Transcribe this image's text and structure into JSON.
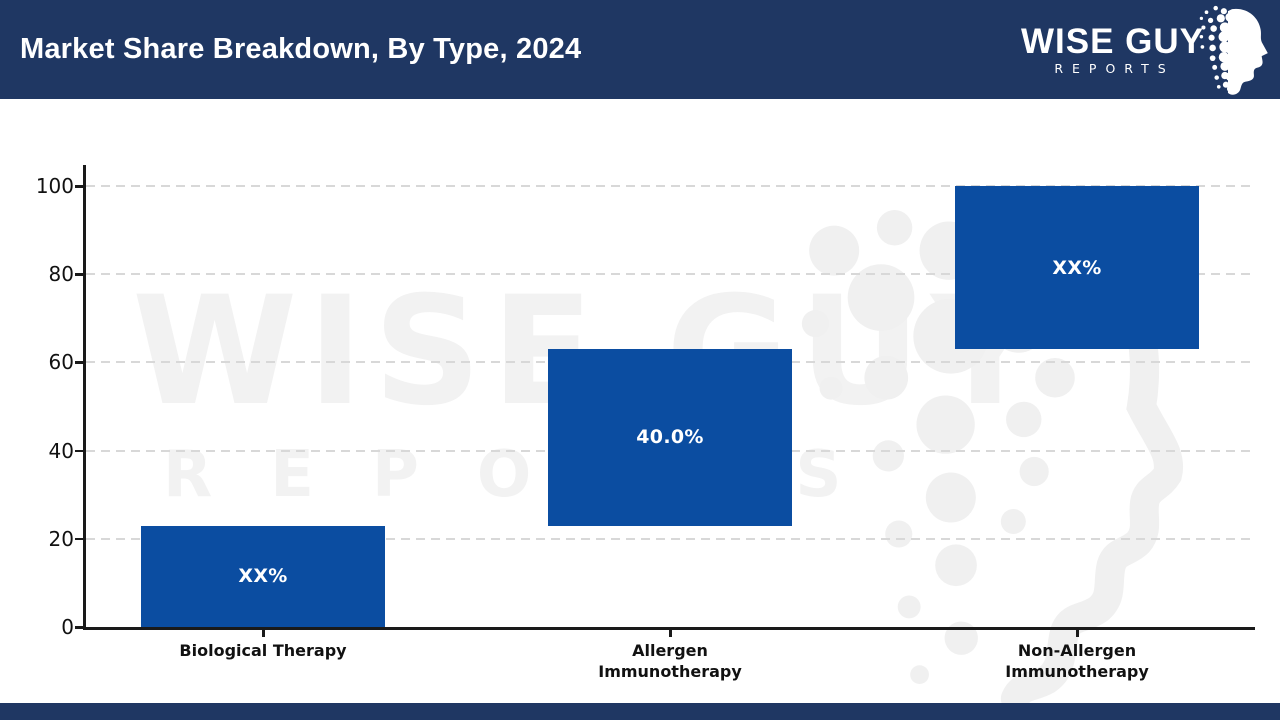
{
  "header": {
    "title": "Market Share Breakdown, By Type, 2024",
    "logo": {
      "name": "WISE GUY",
      "subname": "REPORTS"
    }
  },
  "watermark": {
    "line1": "WISE GUY",
    "line2": "REPORTS"
  },
  "colors": {
    "header_bg": "#1f3763",
    "footer_bg": "#1f3763",
    "bar": "#0b4da1",
    "bar_label": "#ffffff",
    "grid": "#d8d8d8",
    "axis": "#1a1a1a",
    "watermark": "#f2f2f2"
  },
  "chart_data": {
    "type": "bar",
    "subtype": "floating-segment (waterfall-style market share)",
    "title": "Market Share Breakdown, By Type, 2024",
    "categories": [
      "Biological Therapy",
      "Allergen Immunotherapy",
      "Non-Allergen Immunotherapy"
    ],
    "categories_lines": [
      [
        "Biological Therapy"
      ],
      [
        "Allergen",
        "Immunotherapy"
      ],
      [
        "Non-Allergen",
        "Immunotherapy"
      ]
    ],
    "bars": [
      {
        "category": "Biological Therapy",
        "base": 0,
        "top": 23,
        "label": "XX%"
      },
      {
        "category": "Allergen Immunotherapy",
        "base": 23,
        "top": 63,
        "label": "40.0%"
      },
      {
        "category": "Non-Allergen Immunotherapy",
        "base": 63,
        "top": 100,
        "label": "XX%"
      }
    ],
    "xlabel": "",
    "ylabel": "",
    "ylim": [
      0,
      105
    ],
    "yticks": [
      0,
      20,
      40,
      60,
      80,
      100
    ],
    "grid": "horizontal dashed",
    "legend": null,
    "bar_color": "#0b4da1",
    "bar_label_color": "#ffffff"
  }
}
